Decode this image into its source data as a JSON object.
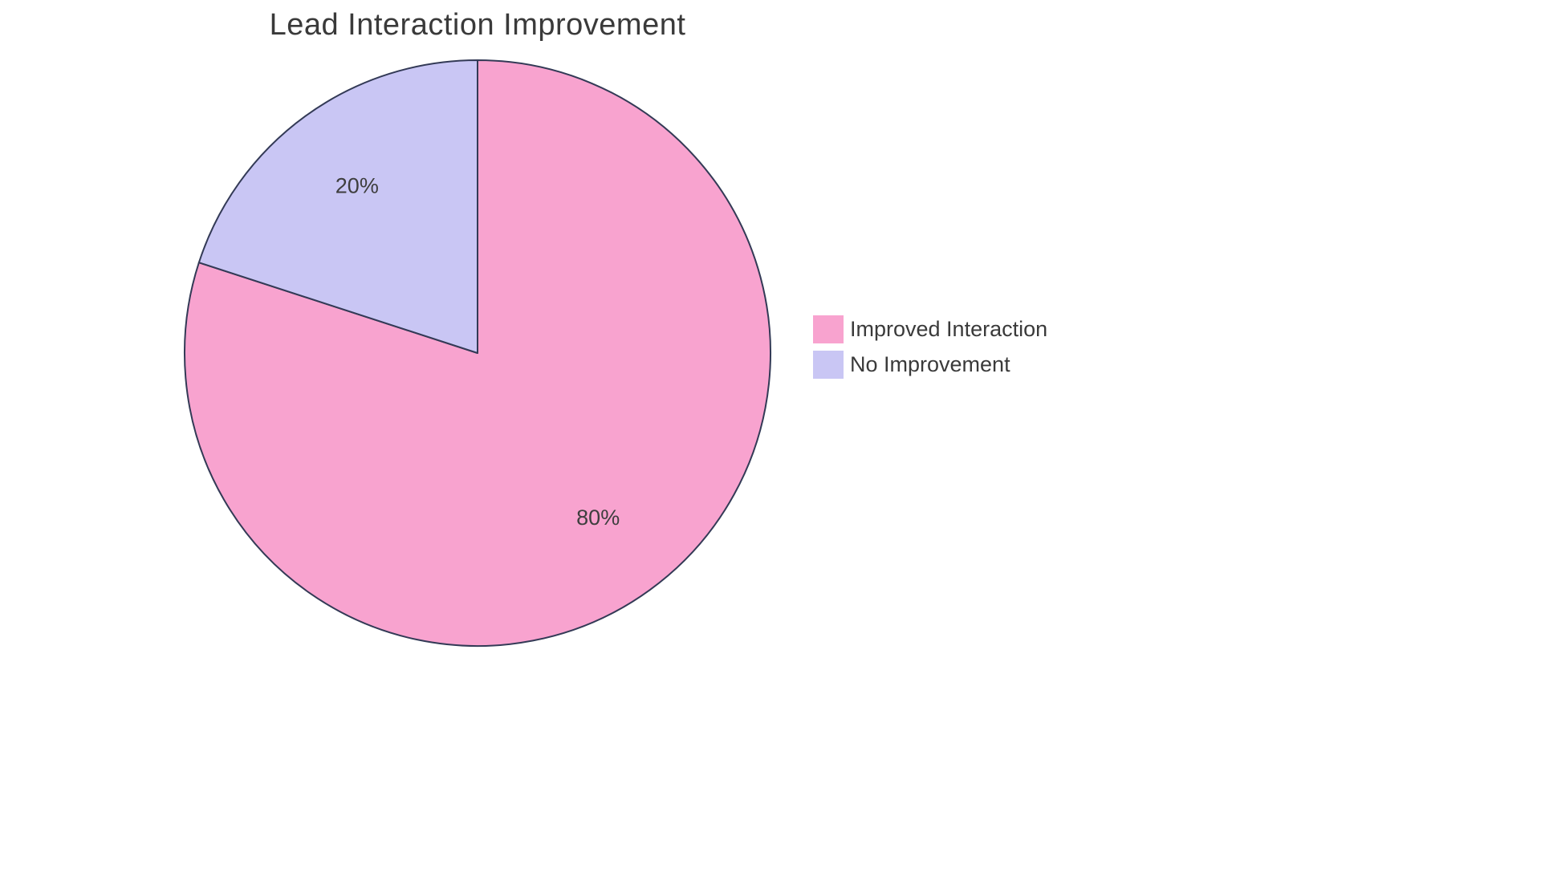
{
  "chart_data": {
    "type": "pie",
    "title": "Lead Interaction Improvement",
    "labels": [
      "Improved Interaction",
      "No Improvement"
    ],
    "values": [
      80,
      20
    ],
    "percent_labels": [
      "80%",
      "20%"
    ],
    "colors": [
      "#F8A3CF",
      "#C9C6F4"
    ],
    "slice_border_color": "#333A56",
    "text_color": "#3e3e3e",
    "legend_position": "right",
    "start_angle_deg": -90,
    "direction": "clockwise"
  }
}
